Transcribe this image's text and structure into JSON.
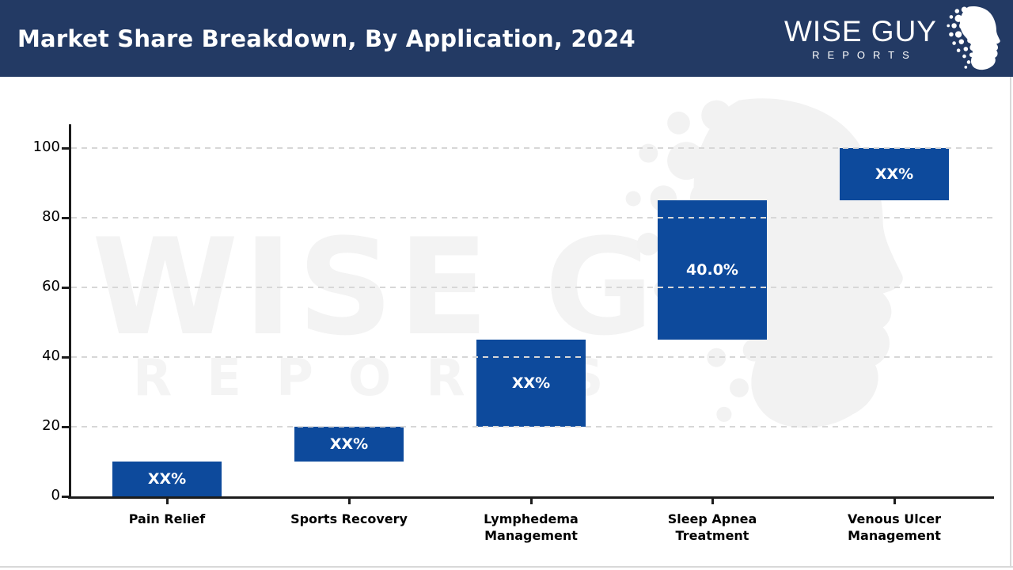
{
  "header": {
    "title": "Market Share Breakdown, By Application, 2024",
    "logo": {
      "line1": "WISE GUY",
      "line2": "REPORTS"
    }
  },
  "watermark": {
    "line1": "WISE GUY",
    "line2": "REPORTS"
  },
  "colors": {
    "header_bg": "#233a64",
    "bar": "#0d4a9c",
    "axis": "#1c1c1c",
    "gridline": "#d7d7d7",
    "title_text": "#ffffff",
    "bar_label_text": "#ffffff"
  },
  "chart_data": {
    "type": "bar",
    "subtype": "waterfall",
    "title": "Market Share Breakdown, By Application, 2024",
    "categories": [
      "Pain Relief",
      "Sports Recovery",
      "Lymphedema Management",
      "Sleep Apnea Treatment",
      "Venous Ulcer Management"
    ],
    "category_label_lines": [
      [
        "Pain Relief"
      ],
      [
        "Sports Recovery"
      ],
      [
        "Lymphedema",
        "Management"
      ],
      [
        "Sleep Apnea",
        "Treatment"
      ],
      [
        "Venous Ulcer",
        "Management"
      ]
    ],
    "values": [
      10,
      10,
      25,
      40,
      15
    ],
    "starts": [
      0,
      10,
      20,
      45,
      85
    ],
    "bar_labels": [
      "XX%",
      "XX%",
      "XX%",
      "40.0%",
      "XX%"
    ],
    "xlabel": "",
    "ylabel": "",
    "ylim": [
      0,
      100
    ],
    "yticks": [
      0,
      20,
      40,
      60,
      80,
      100
    ],
    "grid": "horizontal-dashed",
    "legend": "none"
  }
}
